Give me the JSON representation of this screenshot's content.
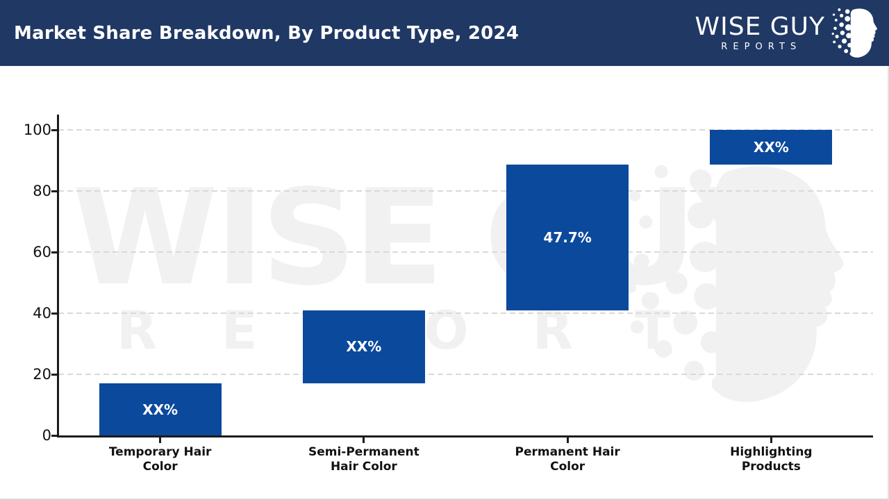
{
  "header": {
    "title": "Market Share Breakdown, By Product Type, 2024",
    "logo_line1": "WISE GUY",
    "logo_line2": "REPORTS"
  },
  "watermark": {
    "line1": "WISE GUY",
    "line2": "REPORTS"
  },
  "colors": {
    "header_bg": "#203864",
    "bar": "#0b499c",
    "watermark": "#f1f1f2",
    "gridline": "#d9d9d9",
    "axis": "#1c1c1c"
  },
  "chart_data": {
    "type": "bar",
    "subtype": "floating-waterfall",
    "title": "Market Share Breakdown, By Product Type, 2024",
    "categories": [
      "Temporary Hair\nColor",
      "Semi-Permanent\nHair Color",
      "Permanent Hair\nColor",
      "Highlighting\nProducts"
    ],
    "bars": [
      {
        "start": 0,
        "end": 17,
        "size": 17,
        "label": "XX%"
      },
      {
        "start": 17,
        "end": 41,
        "size": 24,
        "label": "XX%"
      },
      {
        "start": 41,
        "end": 88.7,
        "size": 47.7,
        "label": "47.7%"
      },
      {
        "start": 88.7,
        "end": 100,
        "size": 11.3,
        "label": "XX%"
      }
    ],
    "yticks": [
      "0",
      "20",
      "40",
      "60",
      "80",
      "100"
    ],
    "ylim": [
      0,
      100
    ],
    "xlabel": "",
    "ylabel": "",
    "grid": "horizontal-dashed",
    "legend": "none"
  }
}
